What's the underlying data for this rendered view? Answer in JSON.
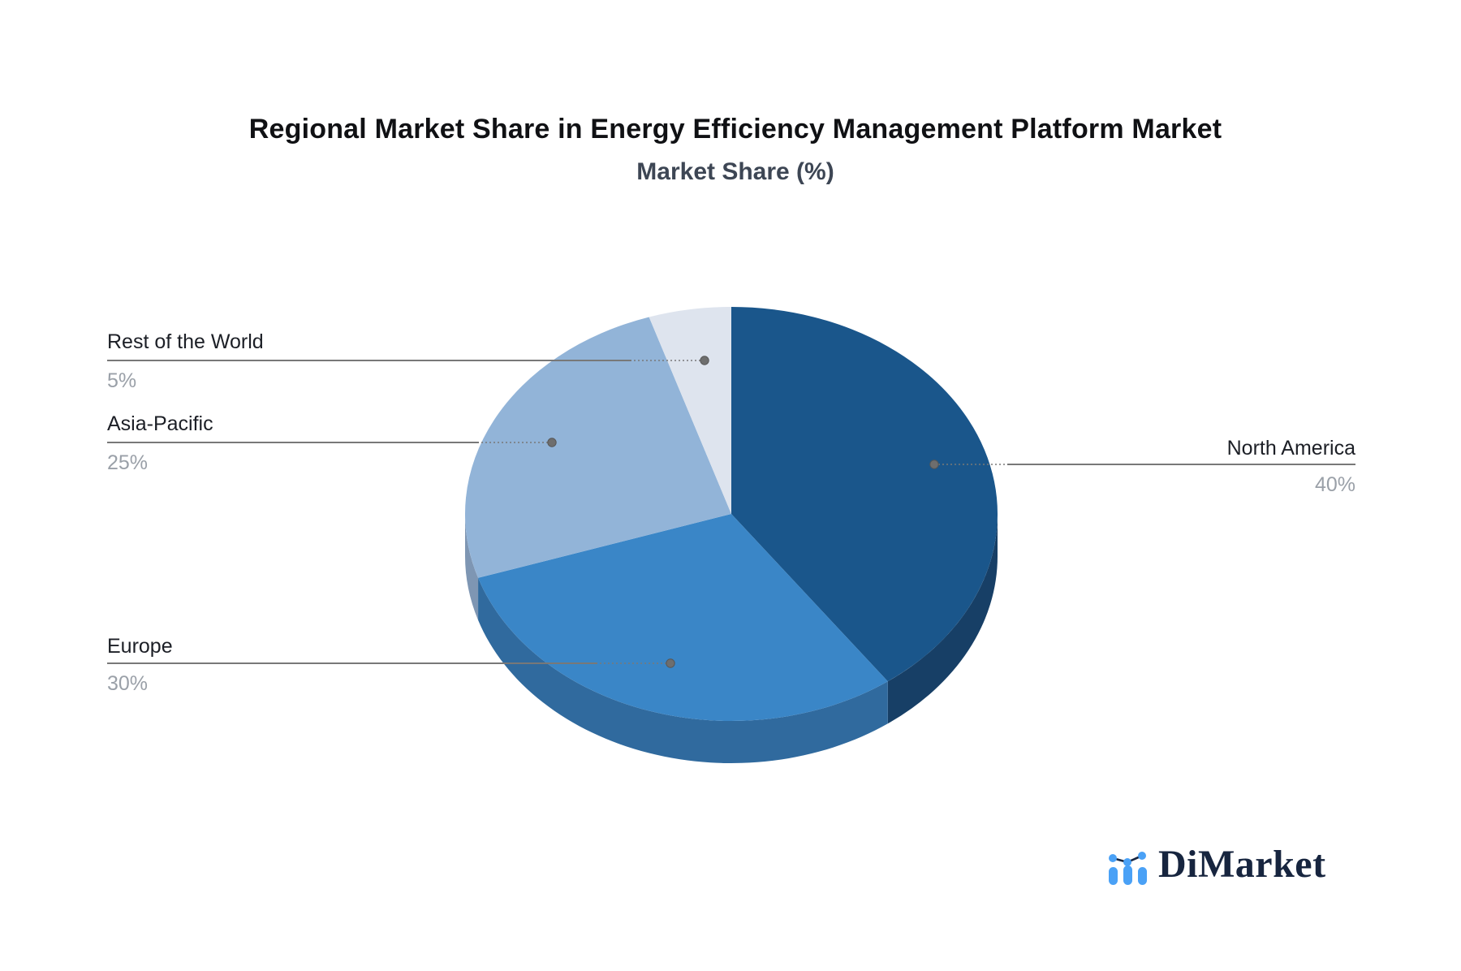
{
  "chart_data": {
    "type": "pie",
    "style": "3d",
    "title": "Regional Market Share in Energy Efficiency Management Platform Market",
    "subtitle": "Market Share (%)",
    "unit": "%",
    "start_angle_deg": 270,
    "clockwise": true,
    "legend_position": "none",
    "labels_style": "leader-lines",
    "slices": [
      {
        "label": "North America",
        "value": 40,
        "pct": "40%",
        "color": "#1A568B",
        "side_color": "#173F66"
      },
      {
        "label": "Europe",
        "value": 30,
        "pct": "30%",
        "color": "#3A86C7",
        "side_color": "#306A9E"
      },
      {
        "label": "Asia-Pacific",
        "value": 25,
        "pct": "25%",
        "color": "#92B4D8",
        "side_color": "#7E96B3"
      },
      {
        "label": "Rest of the World",
        "value": 5,
        "pct": "5%",
        "color": "#DEE4EE",
        "side_color": "#C2CBD9"
      }
    ]
  },
  "colors": {
    "background": "#FFFFFF",
    "title_text": "#101114",
    "subtitle_text": "#3D4654",
    "label_text": "#1C1F26",
    "pct_text": "#9AA0A8",
    "leader_line": "#787878",
    "leader_dot": "#6E6E6E",
    "logo_bar_blue": "#4AA1F6",
    "logo_navy": "#17253F"
  },
  "logo": {
    "text": "DiMarket",
    "icon": "bar-chart-trend-icon"
  }
}
